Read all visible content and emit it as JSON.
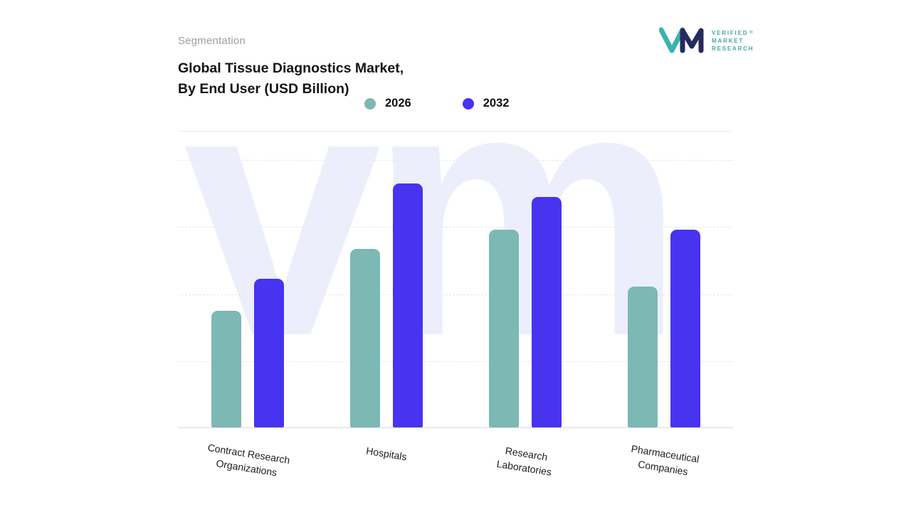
{
  "header": {
    "eyebrow": "Segmentation",
    "title_line1": "Global Tissue Diagnostics Market,",
    "title_line2": "By End User (USD Billion)"
  },
  "logo": {
    "lines": [
      "VERIFIED",
      "MARKET",
      "RESEARCH"
    ],
    "registered": "®",
    "teal": "#3ab4ae",
    "navy": "#262a5e"
  },
  "watermark": "vm",
  "chart_data": {
    "type": "bar",
    "title": "Global Tissue Diagnostics Market, By End User (USD Billion)",
    "categories": [
      "Contract Research\nOrganizations",
      "Hospitals",
      "Research\nLaboratories",
      "Pharmaceutical\nCompanies"
    ],
    "series": [
      {
        "name": "2026",
        "color": "#7cb8b4",
        "values": [
          4.3,
          6.6,
          7.3,
          5.2
        ]
      },
      {
        "name": "2032",
        "color": "#4733f0",
        "values": [
          5.5,
          9.0,
          8.5,
          7.3
        ]
      }
    ],
    "ylim": [
      0,
      9.9
    ],
    "yaxis_labels_visible": false,
    "grid": "dashed-horizontal",
    "legend_position": "top-center"
  }
}
